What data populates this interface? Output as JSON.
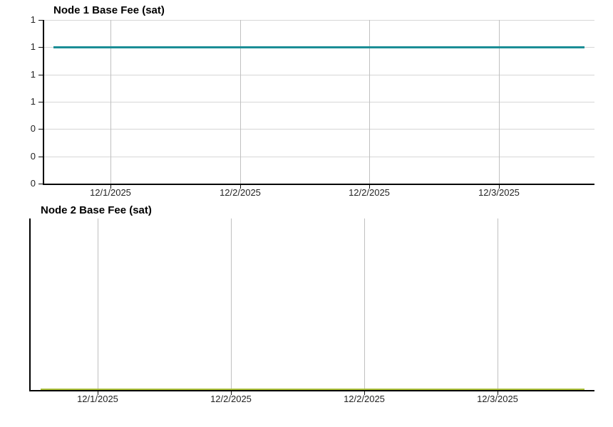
{
  "style": {
    "background": "#ffffff",
    "axis_color": "#000000",
    "grid_color_horizontal": "#d6d6d6",
    "grid_color_vertical": "#c0c0c0",
    "tick_mark_color": "#111111",
    "tick_label_color": "#222222",
    "title_color": "#000000"
  },
  "chart_data": [
    {
      "type": "line",
      "title": "Node 1 Base Fee (sat)",
      "xlabel": "",
      "ylabel": "",
      "x_tick_labels": [
        "12/1/2025",
        "12/2/2025",
        "12/2/2025",
        "12/3/2025"
      ],
      "y_tick_labels": [
        "1",
        "1",
        "1",
        "1",
        "0",
        "0",
        "0"
      ],
      "y_tick_values": [
        1.2,
        1.0,
        0.8,
        0.6,
        0.4,
        0.2,
        0.0
      ],
      "y_range": [
        0,
        1.2
      ],
      "grid_horizontal": true,
      "grid_vertical": true,
      "legend": "none",
      "series": [
        {
          "name": "node1-base-fee",
          "color": "#1b8e96",
          "constant_value": 1,
          "values": [
            1,
            1,
            1,
            1
          ],
          "shape": "flat horizontal line spanning full x range"
        }
      ]
    },
    {
      "type": "line",
      "title": "Node 2 Base Fee (sat)",
      "xlabel": "",
      "ylabel": "",
      "x_tick_labels": [
        "12/1/2025",
        "12/2/2025",
        "12/2/2025",
        "12/3/2025"
      ],
      "y_tick_labels": [],
      "y_tick_values": [],
      "y_range": [
        0,
        1
      ],
      "grid_horizontal": false,
      "grid_vertical": true,
      "legend": "none",
      "series": [
        {
          "name": "node2-base-fee",
          "color": "#a8bd35",
          "constant_value": 0,
          "values": [
            0,
            0,
            0,
            0
          ],
          "shape": "flat horizontal line lying on the x axis"
        }
      ]
    }
  ]
}
